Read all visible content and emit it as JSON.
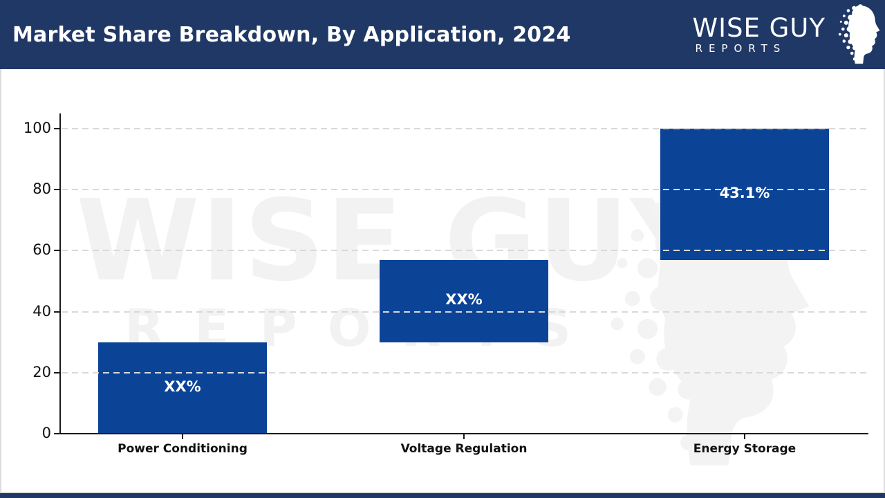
{
  "header": {
    "title": "Market Share Breakdown, By Application, 2024",
    "logo": {
      "line1": "WISE GUY",
      "line2": "REPORTS"
    }
  },
  "watermark": {
    "line1": "WISE GUY",
    "line2": "REPORTS"
  },
  "chart_data": {
    "type": "bar",
    "subtype": "waterfall",
    "title": "Market Share Breakdown, By Application, 2024",
    "categories": [
      "Power Conditioning",
      "Voltage Regulation",
      "Energy Storage"
    ],
    "bars": [
      {
        "category": "Power Conditioning",
        "start": 0,
        "end": 30,
        "label": "XX%"
      },
      {
        "category": "Voltage Regulation",
        "start": 30,
        "end": 56.9,
        "label": "XX%"
      },
      {
        "category": "Energy Storage",
        "start": 56.9,
        "end": 100,
        "label": "43.1%"
      }
    ],
    "xlabel": "",
    "ylabel": "",
    "ylim": [
      0,
      100
    ],
    "yticks": [
      0,
      20,
      40,
      60,
      80,
      100
    ],
    "grid": "dashed-horizontal",
    "legend": "none"
  },
  "colors": {
    "header_bg": "#203866",
    "footer_bg": "#203866",
    "bar": "#0b4397",
    "grid": "#d9d9d9",
    "axis": "#1a1a1a",
    "watermark": "#f2f2f2",
    "bar_label": "#ffffff"
  }
}
